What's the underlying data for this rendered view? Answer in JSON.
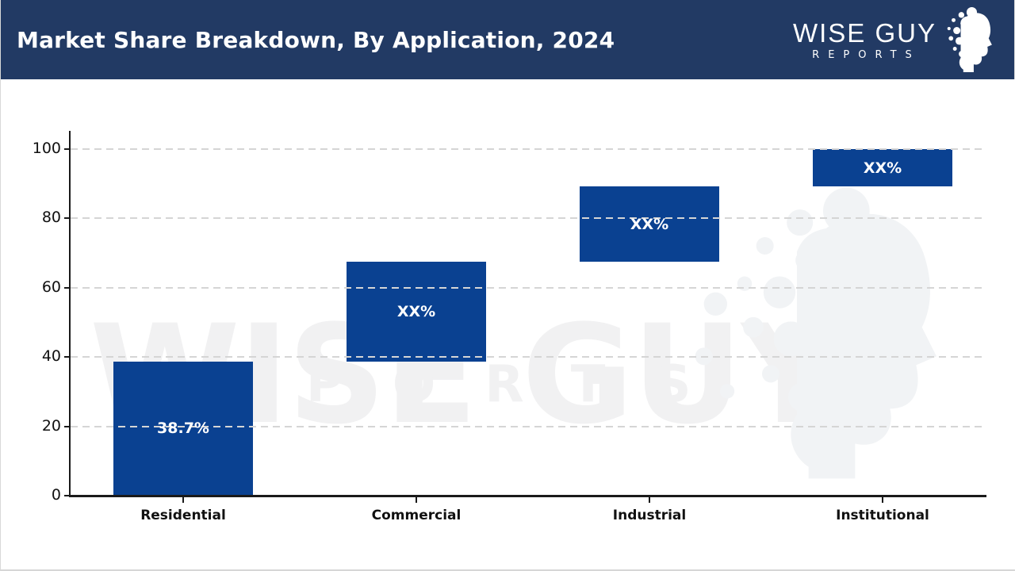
{
  "header": {
    "title": "Market Share Breakdown, By Application, 2024",
    "bg_color": "#223A64",
    "logo": {
      "line1": "WISE GUY",
      "line2": "REPORTS"
    }
  },
  "watermark": {
    "line1": "WISE GUY",
    "line2": "REPORTS"
  },
  "chart_data": {
    "type": "bar",
    "subtype": "floating-waterfall",
    "title": "Market Share Breakdown, By Application, 2024",
    "categories": [
      "Residential",
      "Commercial",
      "Industrial",
      "Institutional"
    ],
    "series": [
      {
        "name": "Market share (%)",
        "segments": [
          {
            "category": "Residential",
            "from": 0,
            "to": 38.7,
            "label": "38.7%"
          },
          {
            "category": "Commercial",
            "from": 38.7,
            "to": 67.5,
            "label": "XX%"
          },
          {
            "category": "Industrial",
            "from": 67.5,
            "to": 89.2,
            "label": "XX%"
          },
          {
            "category": "Institutional",
            "from": 89.2,
            "to": 100,
            "label": "XX%"
          }
        ]
      }
    ],
    "ylim": [
      0,
      105
    ],
    "yticks": [
      0,
      20,
      40,
      60,
      80,
      100
    ],
    "xlabel": "",
    "ylabel": "",
    "grid": {
      "horizontal": true,
      "style": "dashed",
      "color": "#D5D5D5"
    },
    "legend": "none",
    "bar_color": "#0A4191",
    "bar_label_color": "#FFFFFF",
    "axis_color": "#1A1A1A"
  }
}
